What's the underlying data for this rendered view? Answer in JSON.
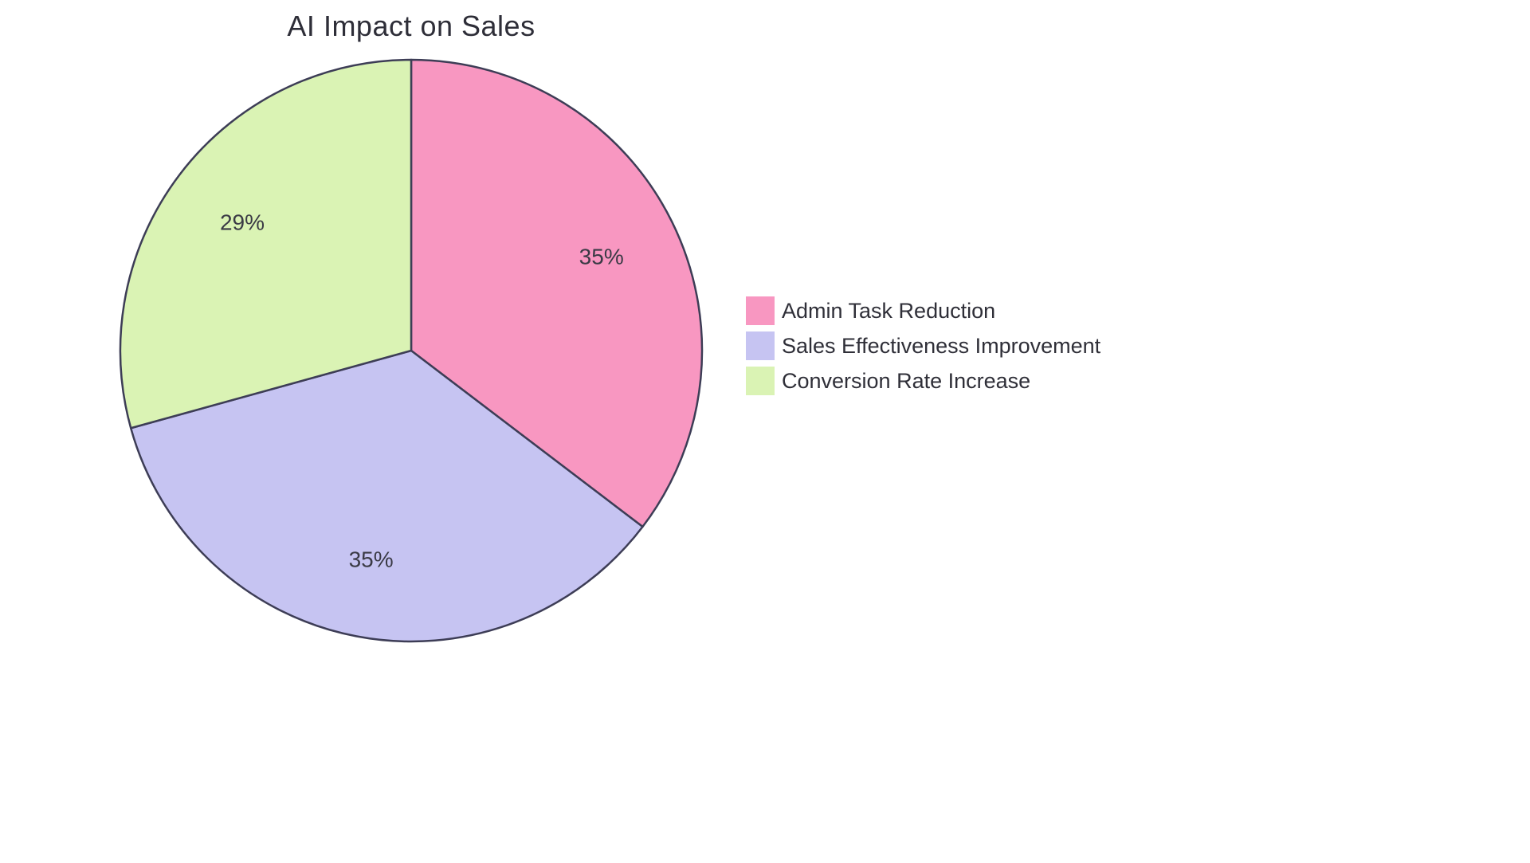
{
  "chart_data": {
    "type": "pie",
    "title": "AI Impact on Sales",
    "labels": [
      "Admin Task Reduction",
      "Sales Effectiveness Improvement",
      "Conversion Rate Increase"
    ],
    "values": [
      35,
      35,
      29
    ],
    "percent_labels": [
      "35%",
      "35%",
      "29%"
    ],
    "colors": [
      "#F897C1",
      "#C6C4F2",
      "#DAF3B4"
    ],
    "stroke_color": "#3D3D56",
    "start_angle": "top",
    "direction": "clockwise",
    "legend_position": "right",
    "background": "#FFFFFF",
    "label_radius_ratio": 0.73
  }
}
